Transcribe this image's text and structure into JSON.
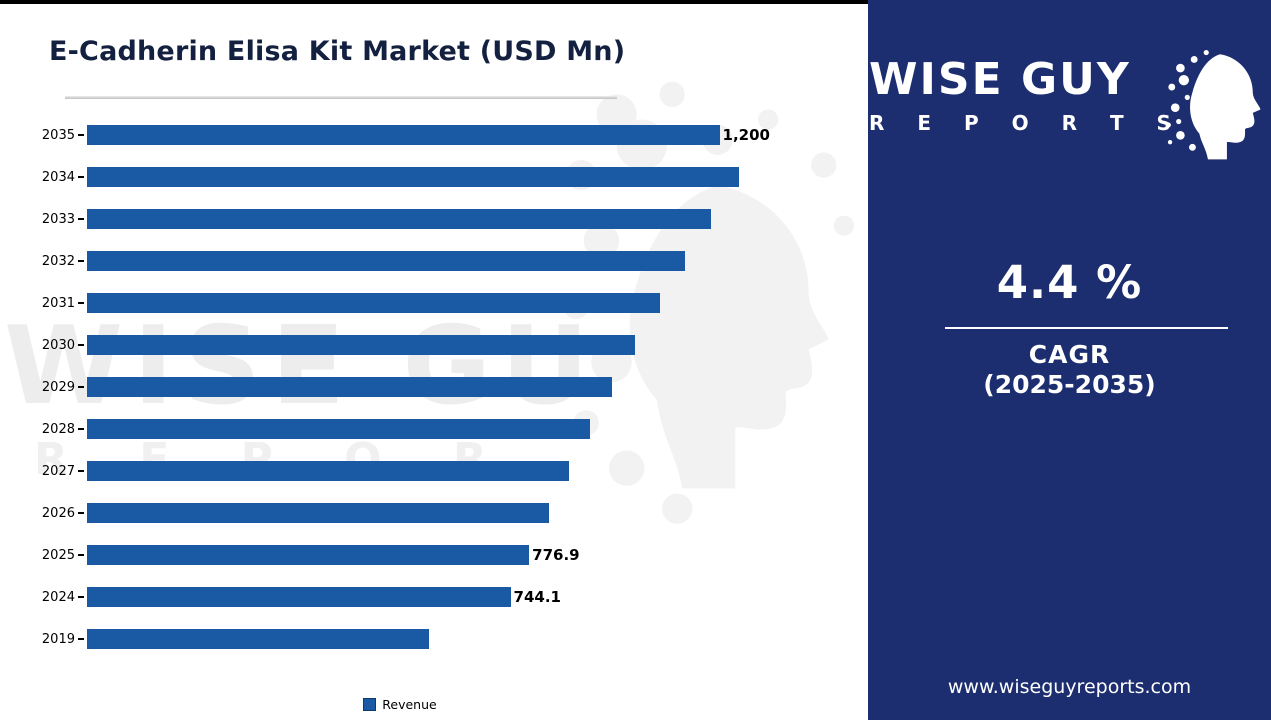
{
  "header": {
    "title": "E-Cadherin Elisa Kit Market (USD Mn)"
  },
  "chart_data": {
    "type": "bar",
    "orientation": "horizontal",
    "title": "E-Cadherin Elisa Kit Market (USD Mn)",
    "categories": [
      "2035",
      "2034",
      "2033",
      "2032",
      "2031",
      "2030",
      "2029",
      "2028",
      "2027",
      "2026",
      "2025",
      "2024",
      "2019"
    ],
    "values": [
      1200,
      1145,
      1096,
      1050,
      1006,
      963,
      923,
      884,
      847,
      811,
      776.9,
      744.1,
      600
    ],
    "value_labels": {
      "2035": "1,200",
      "2025": "776.9",
      "2024": "744.1"
    },
    "xlim": [
      0,
      1200
    ],
    "xlabel": "",
    "ylabel": "",
    "grid": false,
    "legend_position": "bottom",
    "legend_label": "Revenue",
    "bar_color": "#1a5aa5"
  },
  "watermark": {
    "line1": "WISE GU",
    "line2": "R E P O R"
  },
  "sidebar": {
    "logo_line1": "WISE GUY",
    "logo_line2": "R E P O R T S",
    "cagr_value": "4.4 %",
    "cagr_label": "CAGR",
    "cagr_period": "(2025-2035)",
    "website": "www.wiseguyreports.com",
    "bg_color": "#1c2e6f"
  }
}
